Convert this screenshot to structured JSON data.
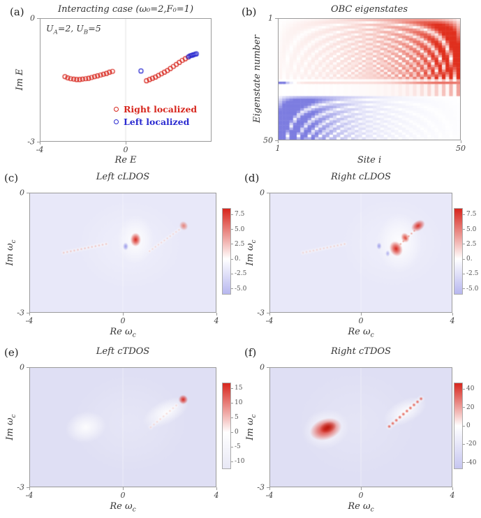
{
  "figure": {
    "bg": "#ffffff",
    "text_color": "#3a3a3a",
    "frame_color": "#9a9a9a"
  },
  "panels": {
    "a": {
      "label": "(a)",
      "title": "Interacting case (ω₀=2,F₀=1)",
      "annotation_parts": [
        "U",
        "A",
        "=2,  U",
        "B",
        "=5"
      ],
      "xlabel_main": "Re E",
      "xlabel_sub": "",
      "ylabel_main": "Im E",
      "ylabel_sub": ""
    },
    "b": {
      "label": "(b)",
      "title": "OBC eigenstates",
      "xlabel_main": "Site i",
      "xlabel_sub": "",
      "ylabel_main": "Eigenstate number",
      "ylabel_sub": ""
    },
    "c": {
      "label": "(c)",
      "title": "Left cLDOS",
      "xlabel_main": "Re ω",
      "xlabel_sub": "c",
      "ylabel_main": "Im ω",
      "ylabel_sub": "c"
    },
    "d": {
      "label": "(d)",
      "title": "Right cLDOS",
      "xlabel_main": "Re ω",
      "xlabel_sub": "c",
      "ylabel_main": "Im ω",
      "ylabel_sub": "c"
    },
    "e": {
      "label": "(e)",
      "title": "Left cTDOS",
      "xlabel_main": "Re ω",
      "xlabel_sub": "c",
      "ylabel_main": "Im ω",
      "ylabel_sub": "c"
    },
    "f": {
      "label": "(f)",
      "title": "Right cTDOS",
      "xlabel_main": "Re ω",
      "xlabel_sub": "c",
      "ylabel_main": "Im ω",
      "ylabel_sub": "c"
    }
  },
  "chart_data": [
    {
      "id": "a",
      "type": "scatter",
      "title": "Interacting case (ω₀=2,F₀=1)",
      "xlabel": "Re E",
      "ylabel": "Im E",
      "xlim": [
        -4,
        4
      ],
      "ylim": [
        -3,
        0
      ],
      "xticks": [
        {
          "v": -4,
          "label": "-4"
        },
        {
          "v": 0,
          "label": "0"
        }
      ],
      "yticks": [
        {
          "v": 0,
          "label": "0"
        },
        {
          "v": -3,
          "label": "-3"
        }
      ],
      "gridline_x": 0,
      "legend_position": "bottom-right",
      "series": [
        {
          "name": "Right localized",
          "color": "#d7261d",
          "marker": "open-circle",
          "points": [
            [
              -2.85,
              -1.42
            ],
            [
              -2.72,
              -1.45
            ],
            [
              -2.58,
              -1.47
            ],
            [
              -2.44,
              -1.48
            ],
            [
              -2.3,
              -1.49
            ],
            [
              -2.16,
              -1.49
            ],
            [
              -2.02,
              -1.48
            ],
            [
              -1.88,
              -1.47
            ],
            [
              -1.74,
              -1.46
            ],
            [
              -1.6,
              -1.44
            ],
            [
              -1.46,
              -1.42
            ],
            [
              -1.32,
              -1.4
            ],
            [
              -1.18,
              -1.38
            ],
            [
              -1.04,
              -1.36
            ],
            [
              -0.9,
              -1.34
            ],
            [
              -0.76,
              -1.31
            ],
            [
              -0.62,
              -1.29
            ],
            [
              0.98,
              -1.52
            ],
            [
              1.12,
              -1.49
            ],
            [
              1.26,
              -1.46
            ],
            [
              1.4,
              -1.43
            ],
            [
              1.54,
              -1.39
            ],
            [
              1.68,
              -1.35
            ],
            [
              1.82,
              -1.31
            ],
            [
              1.96,
              -1.27
            ],
            [
              2.1,
              -1.22
            ],
            [
              2.24,
              -1.17
            ],
            [
              2.38,
              -1.12
            ],
            [
              2.52,
              -1.07
            ],
            [
              2.66,
              -1.02
            ],
            [
              2.8,
              -0.98
            ],
            [
              2.94,
              -0.94
            ]
          ]
        },
        {
          "name": "Left localized",
          "color": "#2a2ad0",
          "marker": "open-circle",
          "points": [
            [
              0.72,
              -1.28
            ],
            [
              2.96,
              -0.93
            ],
            [
              3.02,
              -0.91
            ],
            [
              3.08,
              -0.9
            ],
            [
              3.14,
              -0.89
            ],
            [
              3.2,
              -0.88
            ],
            [
              3.26,
              -0.87
            ],
            [
              3.32,
              -0.86
            ]
          ]
        }
      ]
    },
    {
      "id": "b",
      "type": "heatmap",
      "title": "OBC eigenstates",
      "xlabel": "Site i",
      "ylabel": "Eigenstate number",
      "xlim": [
        1,
        50
      ],
      "ylim": [
        50,
        1
      ],
      "xticks": [
        {
          "v": 1,
          "label": "1"
        },
        {
          "v": 50,
          "label": "50"
        }
      ],
      "yticks": [
        {
          "v": 1,
          "label": "1"
        },
        {
          "v": 50,
          "label": "50"
        }
      ],
      "palette": {
        "pos": "#e0301e",
        "neg": "#7d7de0",
        "zero": "#ffffff"
      },
      "model": {
        "size": 50,
        "right_localized_rows": [
          1,
          25
        ],
        "right_decay": 14,
        "gain_pos": 1.6,
        "left_localized_rows": [
          33,
          50
        ],
        "left_decay": 10,
        "gain_neg": 2.6,
        "mid_band_gain": 0.45,
        "mid_decay": 10,
        "impurity_row": 27,
        "impurity": {
          "amp": 2.4,
          "decay": 1.4,
          "line": 0.14,
          "bump_amp": 0.55,
          "bump_center": 46,
          "bump_width": 120
        }
      }
    },
    {
      "id": "c",
      "type": "density",
      "title": "Left cLDOS",
      "xlabel": "Re ω_c",
      "ylabel": "Im ω_c",
      "xlim": [
        -4,
        4
      ],
      "ylim": [
        -3,
        0
      ],
      "xticks": [
        {
          "v": -4,
          "label": "-4"
        },
        {
          "v": 0,
          "label": "0"
        },
        {
          "v": 4,
          "label": "4"
        }
      ],
      "yticks": [
        {
          "v": 0,
          "label": "0"
        },
        {
          "v": -3,
          "label": "-3"
        }
      ],
      "background": "#e8e8f9",
      "colorbar": {
        "vmin": -6,
        "vmax": 8.6,
        "pos": "#d7261d",
        "neg": "#b7b7ef",
        "ticks": [
          {
            "v": 7.5,
            "label": "7.5"
          },
          {
            "v": 5,
            "label": "5.0"
          },
          {
            "v": 2.5,
            "label": "2.5"
          },
          {
            "v": 0,
            "label": "0."
          },
          {
            "v": -2.5,
            "label": "-2.5"
          },
          {
            "v": -5,
            "label": "-5.0"
          }
        ]
      },
      "features": [
        {
          "t": "blob",
          "x": 0.3,
          "y": -1.3,
          "rx": 2.4,
          "ry": 1.2,
          "rot": 0,
          "color": "#ffffff",
          "alpha": 0.3
        },
        {
          "t": "blob",
          "x": 0.55,
          "y": -1.18,
          "rx": 0.8,
          "ry": 0.62,
          "rot": 0,
          "color": "#ffffff",
          "alpha": 0.9
        },
        {
          "t": "dots",
          "x1": -2.55,
          "y1": -1.5,
          "x2": -0.72,
          "y2": -1.28,
          "n": 13,
          "r": 0.05,
          "color": "#eeb4ac",
          "alpha": 0.85
        },
        {
          "t": "dots",
          "x1": 1.15,
          "y1": -1.46,
          "x2": 2.42,
          "y2": -0.92,
          "n": 11,
          "r": 0.045,
          "color": "#f0c0b8",
          "alpha": 0.75
        },
        {
          "t": "blob",
          "x": 2.62,
          "y": -0.82,
          "rx": 0.18,
          "ry": 0.12,
          "rot": -30,
          "color": "#e4604e",
          "alpha": 0.75
        },
        {
          "t": "blob",
          "x": 0.12,
          "y": -1.34,
          "rx": 0.12,
          "ry": 0.1,
          "rot": 0,
          "color": "#5b5bdc",
          "alpha": 0.6
        },
        {
          "t": "blob",
          "x": 0.55,
          "y": -1.17,
          "rx": 0.23,
          "ry": 0.175,
          "rot": 0,
          "color": "#d7261d",
          "alpha": 1
        }
      ]
    },
    {
      "id": "d",
      "type": "density",
      "title": "Right cLDOS",
      "xlabel": "Re ω_c",
      "ylabel": "Im ω_c",
      "xlim": [
        -4,
        4
      ],
      "ylim": [
        -3,
        0
      ],
      "xticks": [
        {
          "v": -4,
          "label": "-4"
        },
        {
          "v": 0,
          "label": "0"
        },
        {
          "v": 4,
          "label": "4"
        }
      ],
      "yticks": [
        {
          "v": 0,
          "label": "0"
        },
        {
          "v": -3,
          "label": "-3"
        }
      ],
      "background": "#e8e8f9",
      "colorbar": {
        "vmin": -6,
        "vmax": 8.6,
        "pos": "#d7261d",
        "neg": "#b7b7ef",
        "ticks": [
          {
            "v": 7.5,
            "label": "7.5"
          },
          {
            "v": 5,
            "label": "5.0"
          },
          {
            "v": 2.5,
            "label": "2.5"
          },
          {
            "v": 0,
            "label": "0."
          },
          {
            "v": -2.5,
            "label": "-2.5"
          },
          {
            "v": -5,
            "label": "-5.0"
          }
        ]
      },
      "features": [
        {
          "t": "blob",
          "x": 1.4,
          "y": -1.25,
          "rx": 2.4,
          "ry": 1.2,
          "rot": 0,
          "color": "#ffffff",
          "alpha": 0.3
        },
        {
          "t": "blob",
          "x": 1.7,
          "y": -1.25,
          "rx": 1.0,
          "ry": 0.75,
          "rot": 0,
          "color": "#ffffff",
          "alpha": 0.9
        },
        {
          "t": "dots",
          "x1": -2.55,
          "y1": -1.5,
          "x2": -0.72,
          "y2": -1.28,
          "n": 13,
          "r": 0.05,
          "color": "#efc2bb",
          "alpha": 0.8
        },
        {
          "t": "dots",
          "x1": 1.75,
          "y1": -1.28,
          "x2": 2.35,
          "y2": -0.95,
          "n": 6,
          "r": 0.05,
          "color": "#e4705e",
          "alpha": 0.7
        },
        {
          "t": "blob",
          "x": 0.8,
          "y": -1.33,
          "rx": 0.11,
          "ry": 0.09,
          "rot": 0,
          "color": "#5b5bdc",
          "alpha": 0.55
        },
        {
          "t": "blob",
          "x": 1.18,
          "y": -1.52,
          "rx": 0.1,
          "ry": 0.08,
          "rot": 0,
          "color": "#5b5bdc",
          "alpha": 0.45
        },
        {
          "t": "blob",
          "x": 2.52,
          "y": -0.82,
          "rx": 0.33,
          "ry": 0.13,
          "rot": -33,
          "color": "#d7261d",
          "alpha": 0.95
        },
        {
          "t": "blob",
          "x": 1.55,
          "y": -1.4,
          "rx": 0.28,
          "ry": 0.2,
          "rot": -25,
          "color": "#d7261d",
          "alpha": 1
        },
        {
          "t": "blob",
          "x": 1.95,
          "y": -1.12,
          "rx": 0.18,
          "ry": 0.13,
          "rot": -25,
          "color": "#dc3a2a",
          "alpha": 0.9
        }
      ]
    },
    {
      "id": "e",
      "type": "density",
      "title": "Left cTDOS",
      "xlabel": "Re ω_c",
      "ylabel": "Im ω_c",
      "xlim": [
        -4,
        4
      ],
      "ylim": [
        -3,
        0
      ],
      "xticks": [
        {
          "v": -4,
          "label": "-4"
        },
        {
          "v": 0,
          "label": "0"
        },
        {
          "v": 4,
          "label": "4"
        }
      ],
      "yticks": [
        {
          "v": 0,
          "label": "0"
        },
        {
          "v": -3,
          "label": "-3"
        }
      ],
      "background": "#dfdff4",
      "colorbar": {
        "vmin": -12.5,
        "vmax": 17,
        "pos": "#d7261d",
        "neg": "#e8e8f5",
        "ticks": [
          {
            "v": 15,
            "label": "15"
          },
          {
            "v": 10,
            "label": "10"
          },
          {
            "v": 5,
            "label": "5"
          },
          {
            "v": 0,
            "label": "0"
          },
          {
            "v": -5,
            "label": "-5"
          },
          {
            "v": -10,
            "label": "-10"
          }
        ]
      },
      "features": [
        {
          "t": "blob",
          "x": 0.3,
          "y": -1.4,
          "rx": 2.6,
          "ry": 1.3,
          "rot": 0,
          "color": "#ffffff",
          "alpha": 0.22
        },
        {
          "t": "blob",
          "x": -1.6,
          "y": -1.5,
          "rx": 0.9,
          "ry": 0.4,
          "rot": -12,
          "color": "#ffffff",
          "alpha": 0.92
        },
        {
          "t": "blob",
          "x": 1.85,
          "y": -1.12,
          "rx": 1.1,
          "ry": 0.3,
          "rot": -27,
          "color": "#ffffff",
          "alpha": 0.9
        },
        {
          "t": "dots",
          "x1": 1.2,
          "y1": -1.5,
          "x2": 2.3,
          "y2": -0.95,
          "n": 9,
          "r": 0.05,
          "color": "#f2beb6",
          "alpha": 0.65
        },
        {
          "t": "blob",
          "x": 2.6,
          "y": -0.8,
          "rx": 0.2,
          "ry": 0.12,
          "rot": -28,
          "color": "#d7261d",
          "alpha": 1
        }
      ]
    },
    {
      "id": "f",
      "type": "density",
      "title": "Right cTDOS",
      "xlabel": "Re ω_c",
      "ylabel": "Im ω_c",
      "xlim": [
        -4,
        4
      ],
      "ylim": [
        -3,
        0
      ],
      "xticks": [
        {
          "v": -4,
          "label": "-4"
        },
        {
          "v": 0,
          "label": "0"
        },
        {
          "v": 4,
          "label": "4"
        }
      ],
      "yticks": [
        {
          "v": 0,
          "label": "0"
        },
        {
          "v": -3,
          "label": "-3"
        }
      ],
      "background": "#dfdff4",
      "colorbar": {
        "vmin": -47,
        "vmax": 47,
        "pos": "#d7261d",
        "neg": "#c6c6f0",
        "ticks": [
          {
            "v": 40,
            "label": "40"
          },
          {
            "v": 20,
            "label": "20"
          },
          {
            "v": 0,
            "label": "0"
          },
          {
            "v": -20,
            "label": "-20"
          },
          {
            "v": -40,
            "label": "-40"
          }
        ]
      },
      "features": [
        {
          "t": "blob",
          "x": -0.2,
          "y": -1.4,
          "rx": 2.8,
          "ry": 1.4,
          "rot": 0,
          "color": "#ffffff",
          "alpha": 0.18
        },
        {
          "t": "blob",
          "x": -1.55,
          "y": -1.55,
          "rx": 1.05,
          "ry": 0.5,
          "rot": -18,
          "color": "#ffffff",
          "alpha": 0.9
        },
        {
          "t": "blob",
          "x": 1.95,
          "y": -1.1,
          "rx": 1.05,
          "ry": 0.3,
          "rot": -27,
          "color": "#ffffff",
          "alpha": 0.85
        },
        {
          "t": "blob",
          "x": -1.55,
          "y": -1.55,
          "rx": 0.72,
          "ry": 0.27,
          "rot": -18,
          "color": "#d7261d",
          "alpha": 1
        },
        {
          "t": "blob",
          "x": -1.45,
          "y": -1.5,
          "rx": 0.38,
          "ry": 0.14,
          "rot": -18,
          "color": "#b81408",
          "alpha": 0.9
        },
        {
          "t": "dots",
          "x1": 1.25,
          "y1": -1.48,
          "x2": 2.65,
          "y2": -0.78,
          "n": 10,
          "r": 0.07,
          "color": "#e0402e",
          "alpha": 0.9
        }
      ]
    }
  ]
}
